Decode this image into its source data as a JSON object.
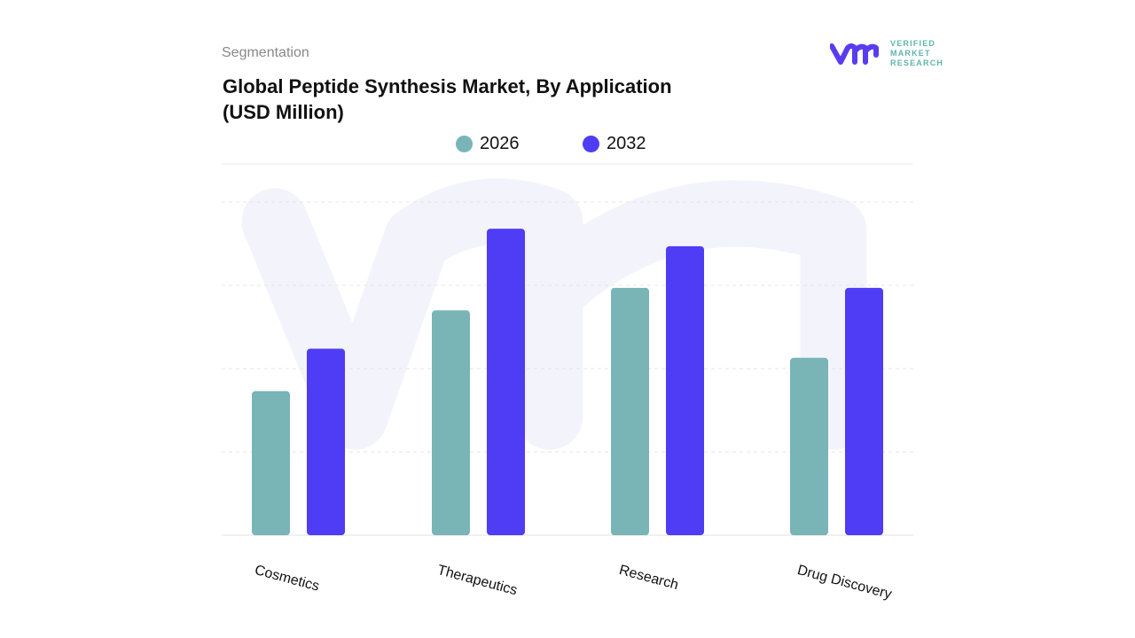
{
  "header": {
    "section": "Segmentation",
    "title_line1": "Global Peptide Synthesis Market, By Application",
    "title_line2": "(USD Million)"
  },
  "logo": {
    "line1": "VERIFIED",
    "line2": "MARKET",
    "line3": "RESEARCH",
    "mark": "vmr"
  },
  "chart_data": {
    "type": "bar",
    "title": "Global Peptide Synthesis Market, By Application (USD Million)",
    "categories": [
      "Cosmetics",
      "Therapeutics",
      "Research",
      "Drug Discovery"
    ],
    "series": [
      {
        "name": "2026",
        "color": "#79b4b7",
        "values": [
          1.73,
          2.7,
          2.97,
          2.13
        ]
      },
      {
        "name": "2032",
        "color": "#4f3cf5",
        "values": [
          2.24,
          3.68,
          3.47,
          2.97
        ]
      }
    ],
    "ylim": [
      0,
      4
    ],
    "grid": true,
    "legend": "top",
    "xlabel": "",
    "ylabel": ""
  }
}
